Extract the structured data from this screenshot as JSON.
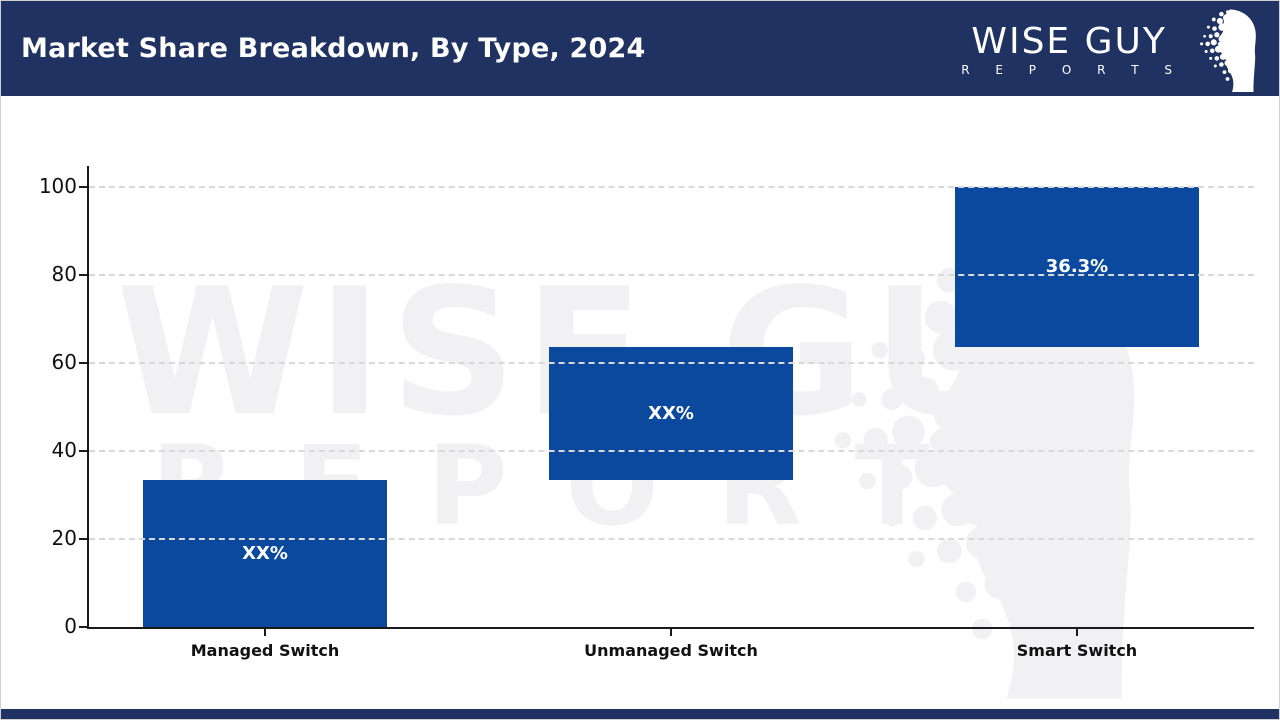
{
  "header": {
    "title": "Market Share Breakdown, By Type, 2024",
    "bg_color": "#1f3262",
    "logo": {
      "wordmark": "WISE GUY",
      "subtext": "R E P O R T S"
    }
  },
  "watermark": {
    "line1": "WISE GUY",
    "line2": "REPORTS"
  },
  "footer": {
    "bg_color": "#1f3262"
  },
  "chart_data": {
    "type": "bar",
    "variant": "floating-waterfall",
    "title": "Market Share Breakdown, By Type, 2024",
    "categories": [
      "Managed Switch",
      "Unmanaged Switch",
      "Smart Switch"
    ],
    "series": [
      {
        "name": "Market Share",
        "segments": [
          {
            "category": "Managed Switch",
            "start": 0,
            "end": 33.4,
            "label": "XX%"
          },
          {
            "category": "Unmanaged Switch",
            "start": 33.4,
            "end": 63.7,
            "label": "XX%"
          },
          {
            "category": "Smart Switch",
            "start": 63.7,
            "end": 100,
            "label": "36.3%"
          }
        ]
      }
    ],
    "xlabel": "",
    "ylabel": "",
    "yticks": [
      0,
      20,
      40,
      60,
      80,
      100
    ],
    "ylim": [
      0,
      105
    ],
    "grid": true,
    "grid_style": "dashed",
    "legend": false,
    "bar_color": "#0a499e",
    "bar_label_color": "#ffffff",
    "axis_color": "#1a1a1a",
    "tick_label_color": "#111111"
  }
}
